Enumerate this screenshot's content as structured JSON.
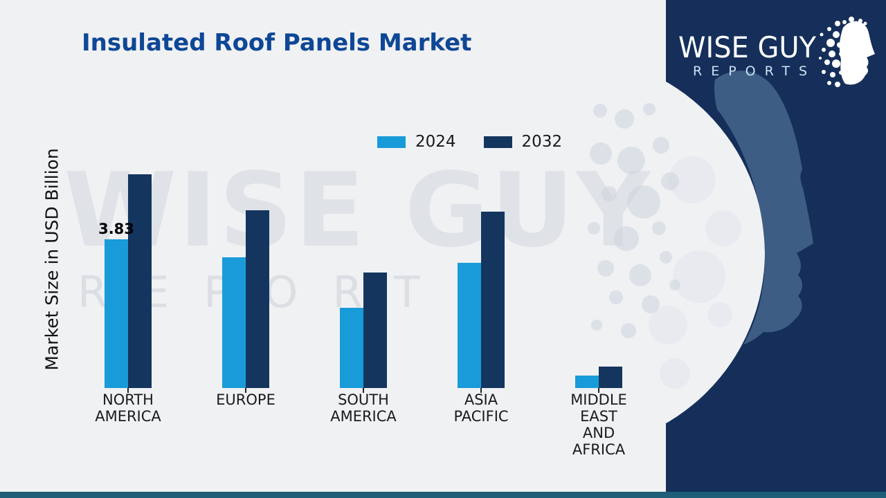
{
  "header": {
    "title": "Insulated Roof Panels Market"
  },
  "logo": {
    "brand": "WISE GUY",
    "sub": "REPORTS"
  },
  "watermark": {
    "line1": "WISE GUY",
    "line2": "REPORTS"
  },
  "chart_data": {
    "type": "bar",
    "title": "Insulated Roof Panels Market",
    "xlabel": "",
    "ylabel": "Market Size in USD Billion",
    "ylim": [
      0,
      5.6
    ],
    "grid": false,
    "legend_position": "top-center",
    "categories": [
      "NORTH AMERICA",
      "EUROPE",
      "SOUTH AMERICA",
      "ASIA PACIFIC",
      "MIDDLE EAST AND AFRICA"
    ],
    "series": [
      {
        "name": "2024",
        "color": "#189bd8",
        "values": [
          3.83,
          3.37,
          2.07,
          3.22,
          0.32
        ]
      },
      {
        "name": "2032",
        "color": "#14355e",
        "values": [
          5.5,
          4.58,
          2.98,
          4.54,
          0.55
        ]
      }
    ],
    "annotations": [
      {
        "category": "NORTH AMERICA",
        "series": "2024",
        "text": "3.83",
        "value": 3.83
      }
    ]
  },
  "colors": {
    "background": "#f0f1f3",
    "title": "#0e4796",
    "bar_2024": "#189bd8",
    "bar_2032": "#14355e",
    "brand_panel": "#152f5a",
    "teal_strip": "#1e5e76",
    "watermark": "#dcdfe5",
    "face_silhouette": "#3d5d84"
  }
}
